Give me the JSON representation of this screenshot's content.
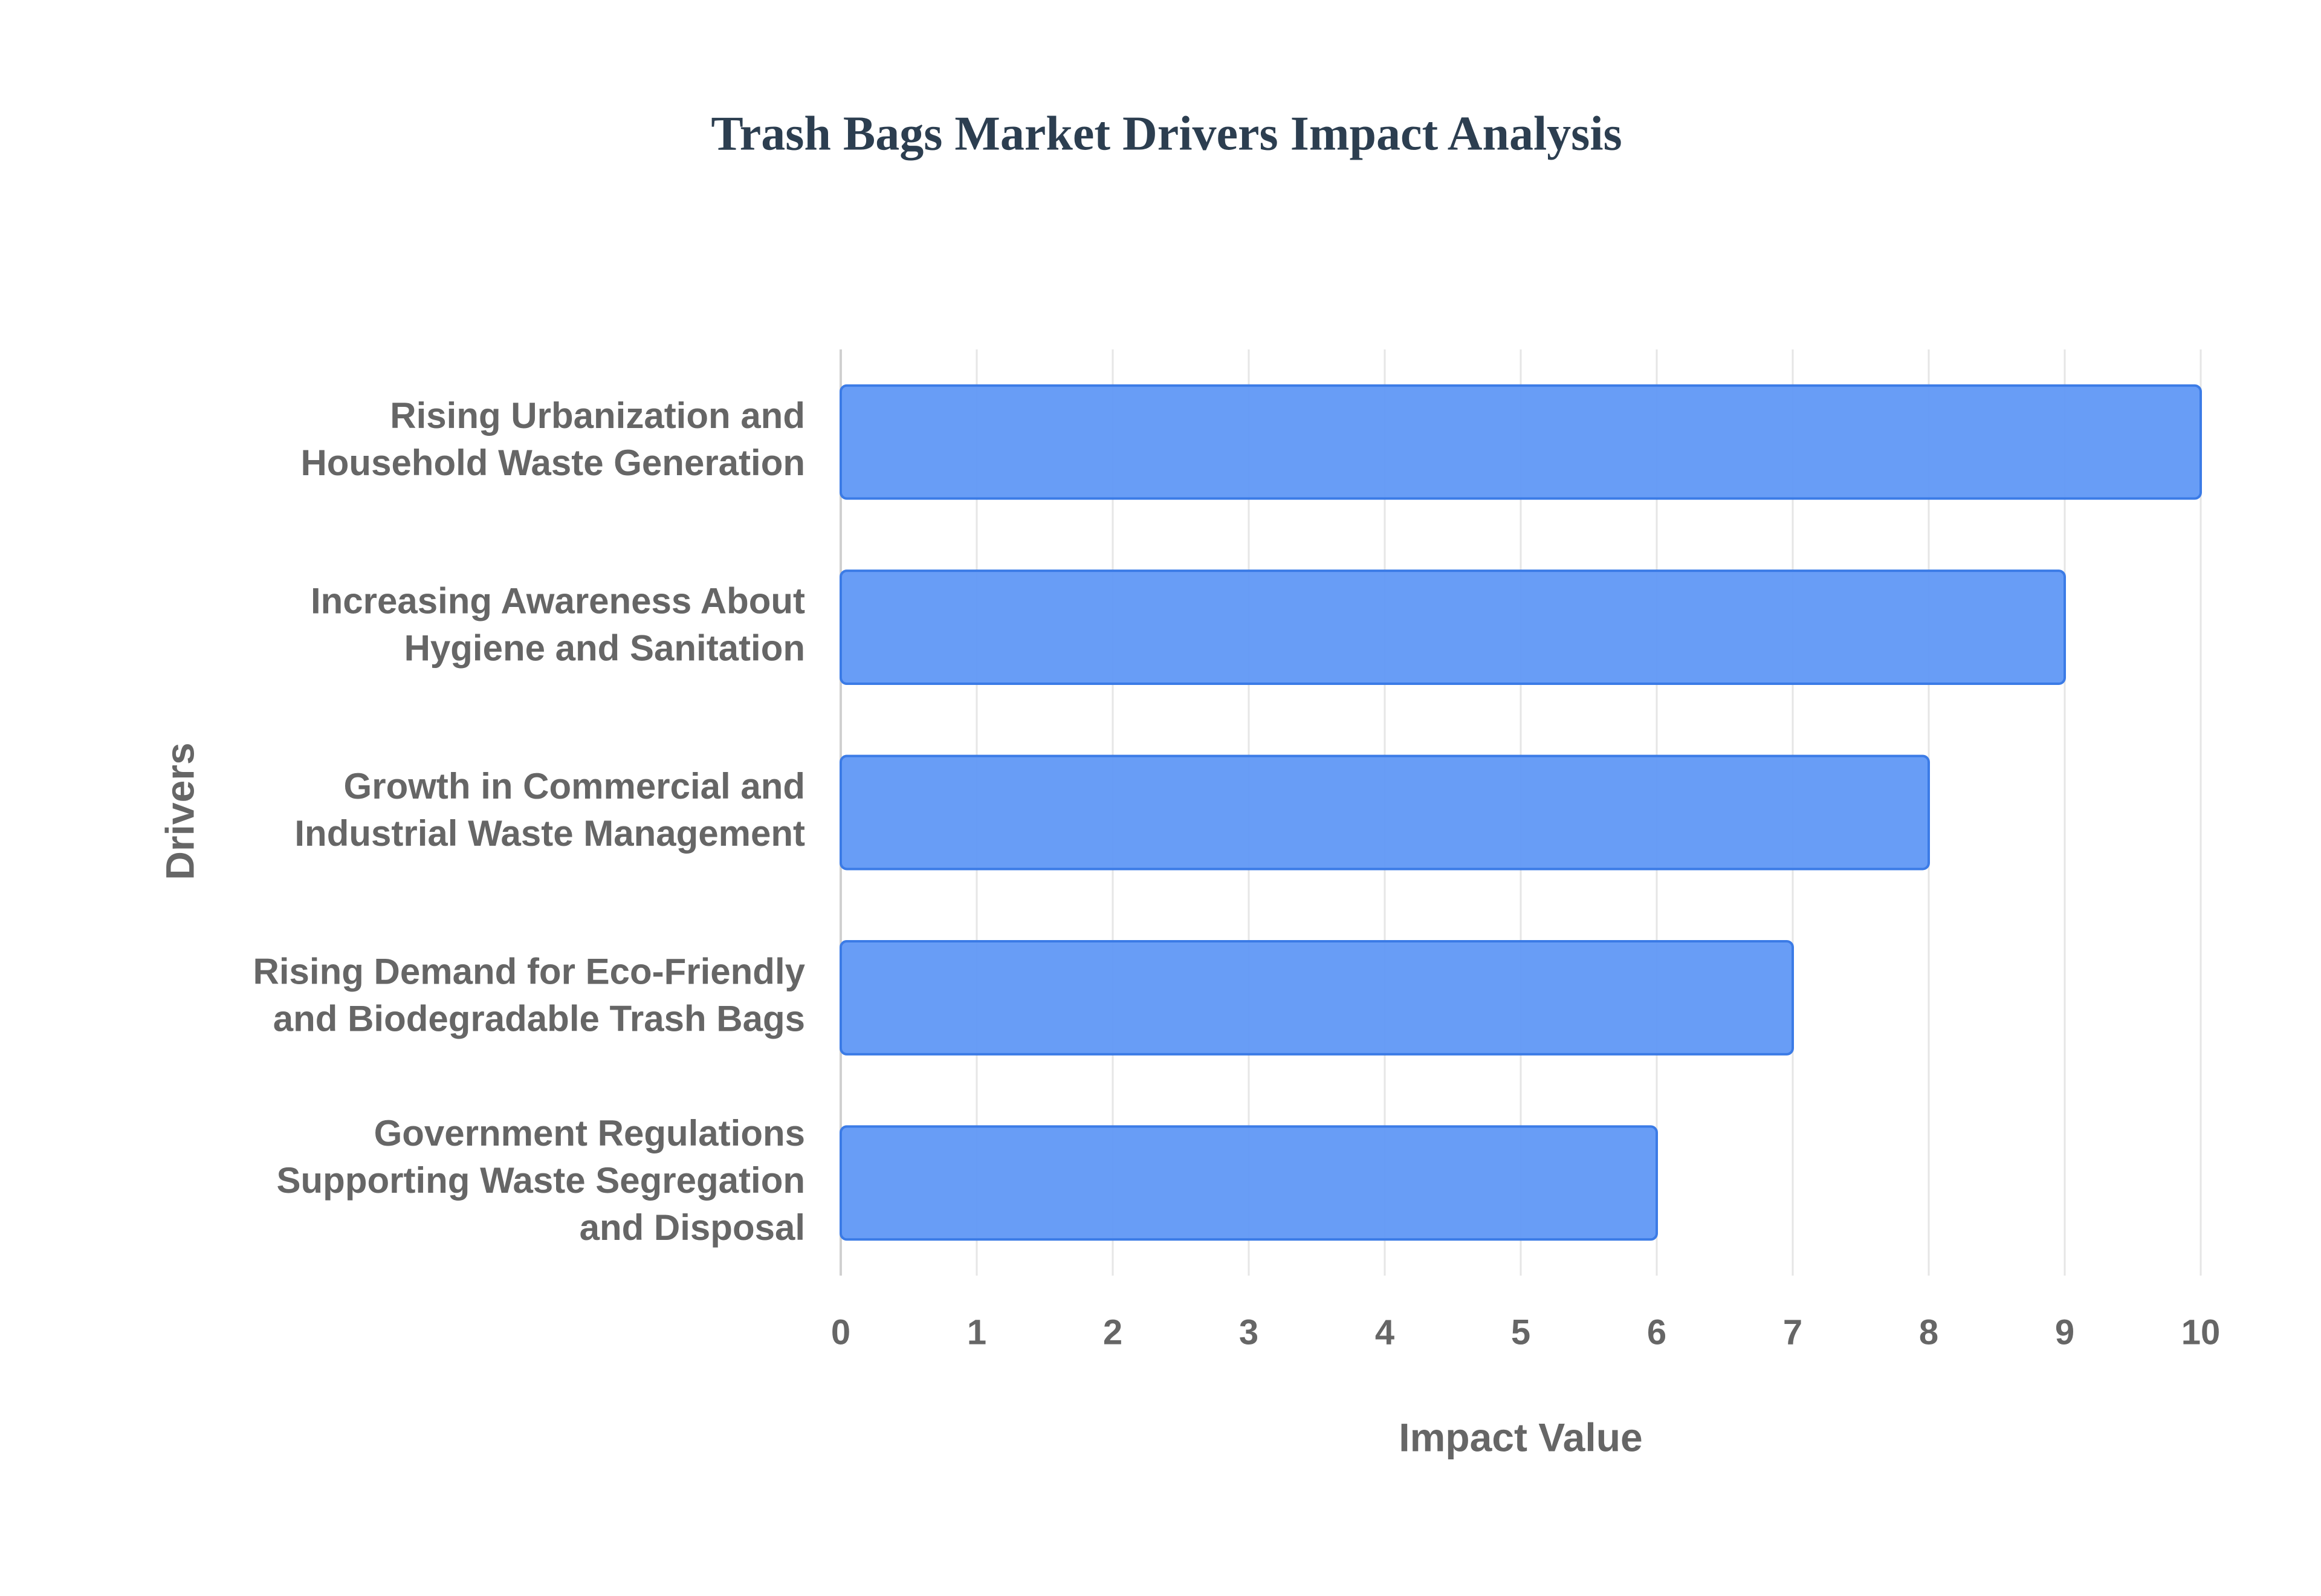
{
  "chart_data": {
    "type": "bar",
    "orientation": "horizontal",
    "title": "Trash Bags Market Drivers Impact Analysis",
    "x_label": "Impact Value",
    "y_label": "Drivers",
    "categories": [
      "Rising Urbanization and\nHousehold Waste Generation",
      "Increasing Awareness About\nHygiene and Sanitation",
      "Growth in Commercial and\nIndustrial Waste Management",
      "Rising Demand for Eco-Friendly\nand Biodegradable Trash Bags",
      "Government Regulations\nSupporting Waste Segregation\nand Disposal"
    ],
    "values": [
      10,
      9,
      8,
      7,
      6
    ],
    "color": "#6098f5",
    "xlim": [
      0,
      10
    ],
    "xticks": [
      0,
      1,
      2,
      3,
      4,
      5,
      6,
      7,
      8,
      9,
      10
    ],
    "grid": true
  }
}
